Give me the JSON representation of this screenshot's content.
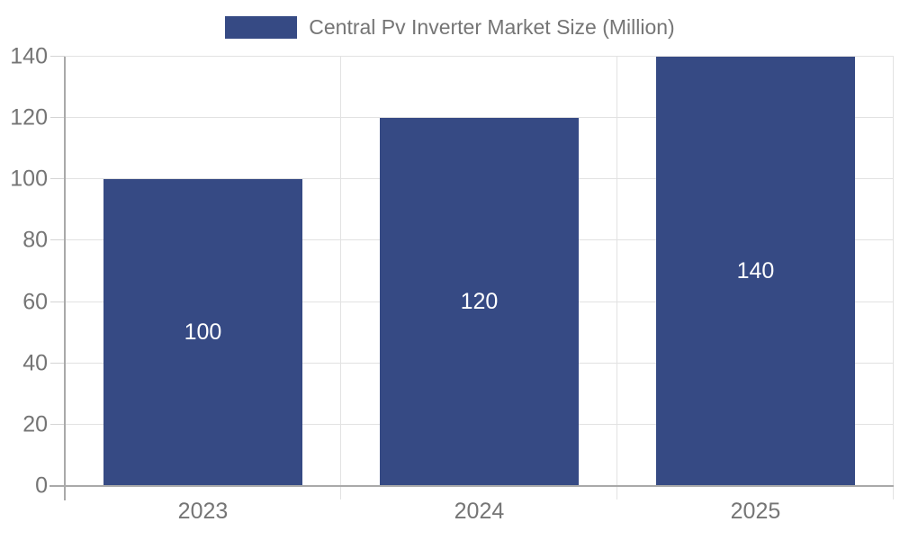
{
  "chart_data": {
    "type": "bar",
    "title": "Central Pv Inverter Market Size (Million)",
    "categories": [
      "2023",
      "2024",
      "2025"
    ],
    "values": [
      100,
      120,
      140
    ],
    "series": [
      {
        "name": "Central Pv Inverter Market Size (Million)",
        "values": [
          100,
          120,
          140
        ]
      }
    ],
    "xlabel": "",
    "ylabel": "",
    "ylim": [
      0,
      140
    ],
    "yticks": [
      0,
      20,
      40,
      60,
      80,
      100,
      120,
      140
    ],
    "grid": true,
    "legend_position": "top-center",
    "bar_width_fraction": 0.72,
    "bar_value_labels_inside": true,
    "colors": {
      "bar": "#364A84",
      "bar_label": "#FFFFFF",
      "axis_text": "#757575",
      "gridline": "#E2E2E2",
      "axis_line": "#A9A9A9",
      "tick_mark": "#D4D4D4",
      "background": "#FFFFFF"
    }
  }
}
